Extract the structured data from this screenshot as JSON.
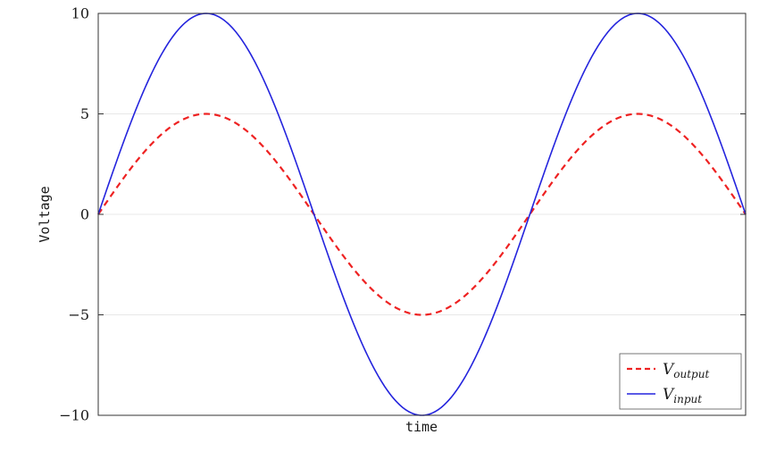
{
  "chart_data": {
    "type": "line",
    "title": "",
    "xlabel": "time",
    "ylabel": "Voltage",
    "xlim": [
      0,
      1
    ],
    "ylim": [
      -10,
      10
    ],
    "yticks": [
      {
        "value": -10,
        "label": "−10"
      },
      {
        "value": -5,
        "label": "−5"
      },
      {
        "value": 0,
        "label": "0"
      },
      {
        "value": 5,
        "label": "5"
      },
      {
        "value": 10,
        "label": "10"
      }
    ],
    "grid": "horizontal-major",
    "legend_position": "bottom-right",
    "series": [
      {
        "name": "V_output",
        "label_base": "V",
        "label_sub": "output",
        "waveform": "sine",
        "amplitude": 5,
        "cycles": 1.5,
        "phase": 0,
        "color": "#ee2222",
        "style": "dashed",
        "line_width": 2.2
      },
      {
        "name": "V_input",
        "label_base": "V",
        "label_sub": "input",
        "waveform": "sine",
        "amplitude": 10,
        "cycles": 1.5,
        "phase": 0,
        "color": "#2424dd",
        "style": "solid",
        "line_width": 1.6
      }
    ],
    "colors": {
      "frame": "#333333",
      "grid": "#e8e8e8",
      "tick": "#333333",
      "text": "#1a1a1a",
      "legend_border": "#555555",
      "background": "#ffffff"
    }
  }
}
